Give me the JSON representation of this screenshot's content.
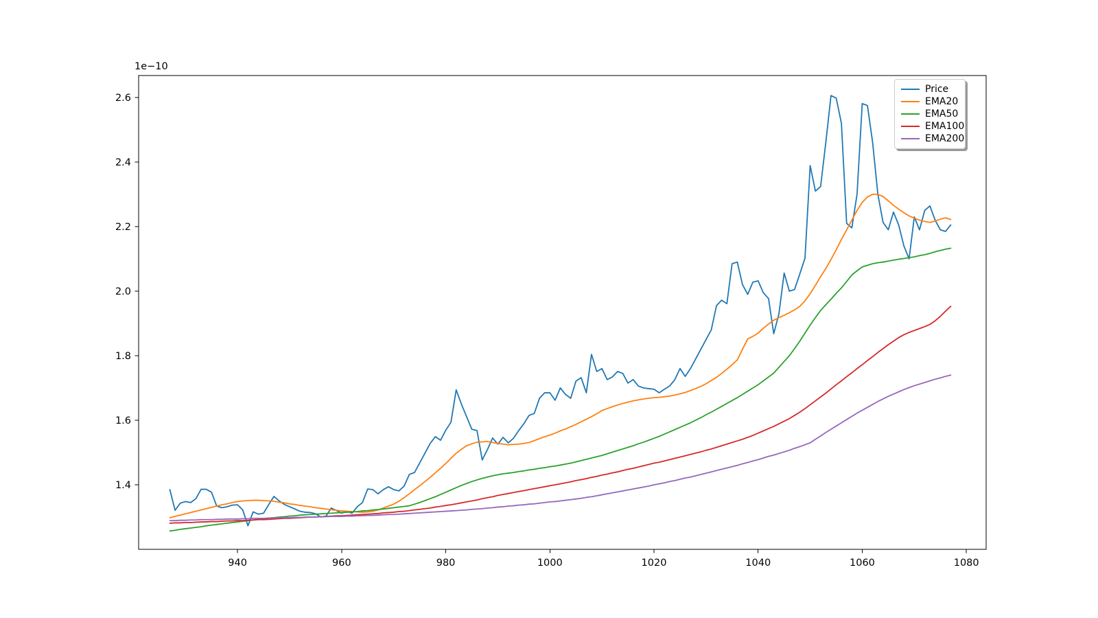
{
  "chart_data": {
    "type": "line",
    "title": "",
    "xlabel": "",
    "ylabel": "",
    "y_scale_offset_label": "1e−10",
    "grid": false,
    "legend_position": "upper right",
    "x_start": 927,
    "x_step": 1,
    "xlim": [
      921.0,
      1083.8
    ],
    "ylim": [
      1.2,
      2.668
    ],
    "x_ticks": [
      940,
      960,
      980,
      1000,
      1020,
      1040,
      1060,
      1080
    ],
    "y_ticks": [
      1.4,
      1.6,
      1.8,
      2.0,
      2.2,
      2.4,
      2.6
    ],
    "series": [
      {
        "name": "Price",
        "color": "#1f77b4",
        "values": [
          1.385,
          1.321,
          1.343,
          1.348,
          1.345,
          1.357,
          1.386,
          1.386,
          1.377,
          1.334,
          1.329,
          1.332,
          1.337,
          1.338,
          1.322,
          1.273,
          1.316,
          1.309,
          1.312,
          1.339,
          1.364,
          1.35,
          1.339,
          1.332,
          1.325,
          1.318,
          1.315,
          1.314,
          1.31,
          1.3,
          1.303,
          1.328,
          1.32,
          1.312,
          1.318,
          1.312,
          1.332,
          1.345,
          1.387,
          1.385,
          1.372,
          1.385,
          1.394,
          1.385,
          1.381,
          1.396,
          1.432,
          1.438,
          1.468,
          1.498,
          1.528,
          1.549,
          1.538,
          1.569,
          1.594,
          1.694,
          1.65,
          1.611,
          1.572,
          1.568,
          1.477,
          1.509,
          1.545,
          1.526,
          1.547,
          1.53,
          1.544,
          1.568,
          1.589,
          1.615,
          1.621,
          1.668,
          1.685,
          1.685,
          1.662,
          1.7,
          1.68,
          1.668,
          1.721,
          1.732,
          1.685,
          1.804,
          1.751,
          1.76,
          1.726,
          1.734,
          1.751,
          1.745,
          1.715,
          1.726,
          1.706,
          1.7,
          1.698,
          1.696,
          1.685,
          1.696,
          1.706,
          1.726,
          1.76,
          1.736,
          1.76,
          1.79,
          1.82,
          1.85,
          1.88,
          1.955,
          1.972,
          1.961,
          2.085,
          2.09,
          2.02,
          1.99,
          2.028,
          2.032,
          1.995,
          1.977,
          1.868,
          1.93,
          2.056,
          2.0,
          2.005,
          2.053,
          2.102,
          2.389,
          2.31,
          2.324,
          2.46,
          2.606,
          2.598,
          2.52,
          2.21,
          2.196,
          2.3,
          2.581,
          2.575,
          2.46,
          2.3,
          2.213,
          2.19,
          2.245,
          2.205,
          2.14,
          2.1,
          2.23,
          2.19,
          2.25,
          2.264,
          2.22,
          2.19,
          2.185,
          2.205
        ]
      },
      {
        "name": "EMA20",
        "color": "#ff7f0e",
        "values": [
          1.298,
          1.302,
          1.306,
          1.31,
          1.314,
          1.318,
          1.322,
          1.326,
          1.33,
          1.334,
          1.338,
          1.341,
          1.345,
          1.348,
          1.35,
          1.351,
          1.352,
          1.352,
          1.351,
          1.35,
          1.349,
          1.346,
          1.344,
          1.341,
          1.339,
          1.336,
          1.334,
          1.332,
          1.329,
          1.327,
          1.325,
          1.323,
          1.321,
          1.319,
          1.318,
          1.317,
          1.316,
          1.315,
          1.316,
          1.318,
          1.322,
          1.328,
          1.334,
          1.34,
          1.349,
          1.36,
          1.372,
          1.385,
          1.397,
          1.41,
          1.423,
          1.437,
          1.451,
          1.466,
          1.482,
          1.498,
          1.51,
          1.521,
          1.527,
          1.532,
          1.533,
          1.534,
          1.531,
          1.528,
          1.526,
          1.524,
          1.525,
          1.526,
          1.528,
          1.531,
          1.537,
          1.543,
          1.549,
          1.554,
          1.56,
          1.567,
          1.573,
          1.58,
          1.587,
          1.595,
          1.603,
          1.611,
          1.62,
          1.63,
          1.636,
          1.642,
          1.647,
          1.652,
          1.656,
          1.66,
          1.663,
          1.666,
          1.668,
          1.67,
          1.671,
          1.673,
          1.675,
          1.678,
          1.682,
          1.686,
          1.692,
          1.698,
          1.705,
          1.713,
          1.723,
          1.733,
          1.745,
          1.758,
          1.772,
          1.787,
          1.82,
          1.852,
          1.86,
          1.87,
          1.885,
          1.898,
          1.91,
          1.918,
          1.925,
          1.933,
          1.942,
          1.953,
          1.97,
          1.992,
          2.018,
          2.045,
          2.07,
          2.098,
          2.128,
          2.16,
          2.19,
          2.22,
          2.25,
          2.275,
          2.292,
          2.3,
          2.3,
          2.293,
          2.28,
          2.266,
          2.254,
          2.243,
          2.233,
          2.226,
          2.22,
          2.216,
          2.213,
          2.217,
          2.223,
          2.227,
          2.222
        ]
      },
      {
        "name": "EMA50",
        "color": "#2ca02c",
        "values": [
          1.257,
          1.259,
          1.262,
          1.264,
          1.266,
          1.268,
          1.27,
          1.273,
          1.275,
          1.277,
          1.279,
          1.281,
          1.283,
          1.285,
          1.287,
          1.289,
          1.291,
          1.293,
          1.295,
          1.297,
          1.298,
          1.3,
          1.301,
          1.303,
          1.304,
          1.306,
          1.307,
          1.308,
          1.309,
          1.31,
          1.311,
          1.312,
          1.313,
          1.314,
          1.315,
          1.316,
          1.317,
          1.319,
          1.32,
          1.322,
          1.323,
          1.325,
          1.327,
          1.329,
          1.331,
          1.333,
          1.335,
          1.34,
          1.345,
          1.351,
          1.357,
          1.363,
          1.37,
          1.377,
          1.384,
          1.391,
          1.398,
          1.404,
          1.41,
          1.415,
          1.42,
          1.424,
          1.428,
          1.431,
          1.434,
          1.436,
          1.438,
          1.441,
          1.443,
          1.446,
          1.448,
          1.451,
          1.453,
          1.456,
          1.458,
          1.461,
          1.464,
          1.467,
          1.471,
          1.475,
          1.479,
          1.483,
          1.487,
          1.491,
          1.496,
          1.501,
          1.506,
          1.511,
          1.516,
          1.521,
          1.527,
          1.532,
          1.538,
          1.544,
          1.55,
          1.557,
          1.564,
          1.571,
          1.578,
          1.585,
          1.592,
          1.6,
          1.608,
          1.617,
          1.625,
          1.634,
          1.643,
          1.652,
          1.661,
          1.67,
          1.68,
          1.69,
          1.7,
          1.71,
          1.722,
          1.734,
          1.746,
          1.764,
          1.782,
          1.8,
          1.822,
          1.845,
          1.87,
          1.895,
          1.918,
          1.94,
          1.958,
          1.975,
          1.993,
          2.01,
          2.03,
          2.05,
          2.063,
          2.075,
          2.08,
          2.085,
          2.088,
          2.09,
          2.093,
          2.096,
          2.099,
          2.101,
          2.104,
          2.106,
          2.11,
          2.113,
          2.117,
          2.122,
          2.126,
          2.13,
          2.133
        ]
      },
      {
        "name": "EMA100",
        "color": "#d62728",
        "values": [
          1.281,
          1.282,
          1.282,
          1.283,
          1.283,
          1.284,
          1.285,
          1.285,
          1.286,
          1.286,
          1.287,
          1.288,
          1.288,
          1.289,
          1.289,
          1.29,
          1.291,
          1.292,
          1.292,
          1.293,
          1.294,
          1.295,
          1.296,
          1.296,
          1.297,
          1.298,
          1.299,
          1.3,
          1.3,
          1.301,
          1.302,
          1.303,
          1.304,
          1.304,
          1.305,
          1.306,
          1.307,
          1.308,
          1.309,
          1.31,
          1.311,
          1.313,
          1.314,
          1.315,
          1.317,
          1.318,
          1.32,
          1.322,
          1.324,
          1.326,
          1.328,
          1.331,
          1.333,
          1.336,
          1.338,
          1.341,
          1.344,
          1.347,
          1.35,
          1.353,
          1.357,
          1.36,
          1.363,
          1.367,
          1.37,
          1.373,
          1.376,
          1.379,
          1.382,
          1.385,
          1.388,
          1.391,
          1.394,
          1.397,
          1.4,
          1.403,
          1.406,
          1.409,
          1.413,
          1.416,
          1.419,
          1.423,
          1.426,
          1.43,
          1.433,
          1.437,
          1.44,
          1.444,
          1.448,
          1.451,
          1.455,
          1.459,
          1.463,
          1.467,
          1.47,
          1.474,
          1.478,
          1.482,
          1.486,
          1.49,
          1.494,
          1.498,
          1.502,
          1.507,
          1.511,
          1.516,
          1.521,
          1.526,
          1.531,
          1.536,
          1.541,
          1.547,
          1.553,
          1.56,
          1.567,
          1.574,
          1.581,
          1.589,
          1.597,
          1.605,
          1.615,
          1.625,
          1.636,
          1.648,
          1.66,
          1.672,
          1.684,
          1.697,
          1.71,
          1.722,
          1.735,
          1.747,
          1.76,
          1.772,
          1.785,
          1.797,
          1.81,
          1.822,
          1.834,
          1.845,
          1.856,
          1.865,
          1.872,
          1.878,
          1.884,
          1.89,
          1.897,
          1.908,
          1.922,
          1.938,
          1.953
        ]
      },
      {
        "name": "EMA200",
        "color": "#9467bd",
        "values": [
          1.289,
          1.289,
          1.29,
          1.29,
          1.291,
          1.291,
          1.292,
          1.292,
          1.292,
          1.293,
          1.293,
          1.294,
          1.294,
          1.294,
          1.295,
          1.295,
          1.296,
          1.296,
          1.296,
          1.297,
          1.297,
          1.298,
          1.298,
          1.298,
          1.299,
          1.299,
          1.3,
          1.3,
          1.3,
          1.301,
          1.301,
          1.302,
          1.302,
          1.302,
          1.303,
          1.303,
          1.304,
          1.304,
          1.305,
          1.305,
          1.306,
          1.307,
          1.308,
          1.308,
          1.309,
          1.31,
          1.311,
          1.312,
          1.313,
          1.314,
          1.315,
          1.316,
          1.317,
          1.318,
          1.319,
          1.32,
          1.321,
          1.322,
          1.324,
          1.325,
          1.326,
          1.328,
          1.329,
          1.331,
          1.332,
          1.334,
          1.335,
          1.337,
          1.338,
          1.34,
          1.341,
          1.343,
          1.345,
          1.347,
          1.348,
          1.35,
          1.352,
          1.354,
          1.356,
          1.358,
          1.361,
          1.363,
          1.366,
          1.369,
          1.372,
          1.375,
          1.378,
          1.381,
          1.384,
          1.387,
          1.39,
          1.393,
          1.396,
          1.4,
          1.403,
          1.406,
          1.41,
          1.413,
          1.417,
          1.421,
          1.424,
          1.428,
          1.432,
          1.436,
          1.44,
          1.444,
          1.448,
          1.452,
          1.456,
          1.46,
          1.465,
          1.469,
          1.474,
          1.478,
          1.483,
          1.488,
          1.492,
          1.497,
          1.502,
          1.507,
          1.513,
          1.518,
          1.524,
          1.53,
          1.541,
          1.551,
          1.562,
          1.572,
          1.582,
          1.592,
          1.602,
          1.612,
          1.622,
          1.631,
          1.64,
          1.649,
          1.658,
          1.666,
          1.674,
          1.681,
          1.688,
          1.695,
          1.701,
          1.707,
          1.712,
          1.717,
          1.722,
          1.727,
          1.731,
          1.736,
          1.74
        ]
      }
    ]
  }
}
